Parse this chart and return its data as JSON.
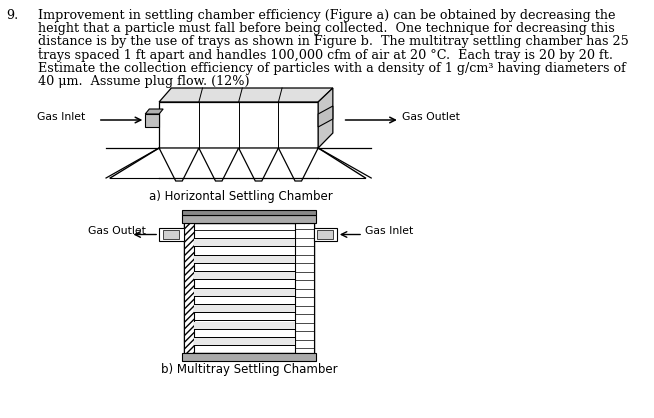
{
  "title_num": "9.",
  "text_lines": [
    "Improvement in settling chamber efficiency (Figure a) can be obtained by decreasing the",
    "height that a particle must fall before being collected.  One technique for decreasing this",
    "distance is by the use of trays as shown in Figure b.  The multitray settling chamber has 25",
    "trays spaced 1 ft apart and handles 100,000 cfm of air at 20 °C.  Each tray is 20 by 20 ft.",
    "Estimate the collection efficiency of particles with a density of 1 g/cm³ having diameters of",
    "40 μm.  Assume plug flow. (12%)"
  ],
  "line3_pre": "distance is by the use of trays as shown in Figure b.  The ",
  "line3_word": "multitray",
  "line4_cfm_pre": "trays spaced 1 ft apart and handles 100,000 ",
  "line4_cfm": "cfm",
  "line4_deg_pre": "trays spaced 1 ft apart and handles 100,000 cfm of air at 20 ",
  "line4_deg": "°C",
  "label_a": "a) Horizontal Settling Chamber",
  "label_b": "b) Multitray Settling Chamber",
  "gas_inlet_a": "Gas Inlet",
  "gas_outlet_a": "Gas Outlet",
  "gas_outlet_b": "Gas Outlet",
  "gas_inlet_b": "Gas Inlet",
  "bg_color": "#ffffff",
  "text_color": "#000000",
  "font_size": 9.2,
  "diagram_font_size": 7.8
}
